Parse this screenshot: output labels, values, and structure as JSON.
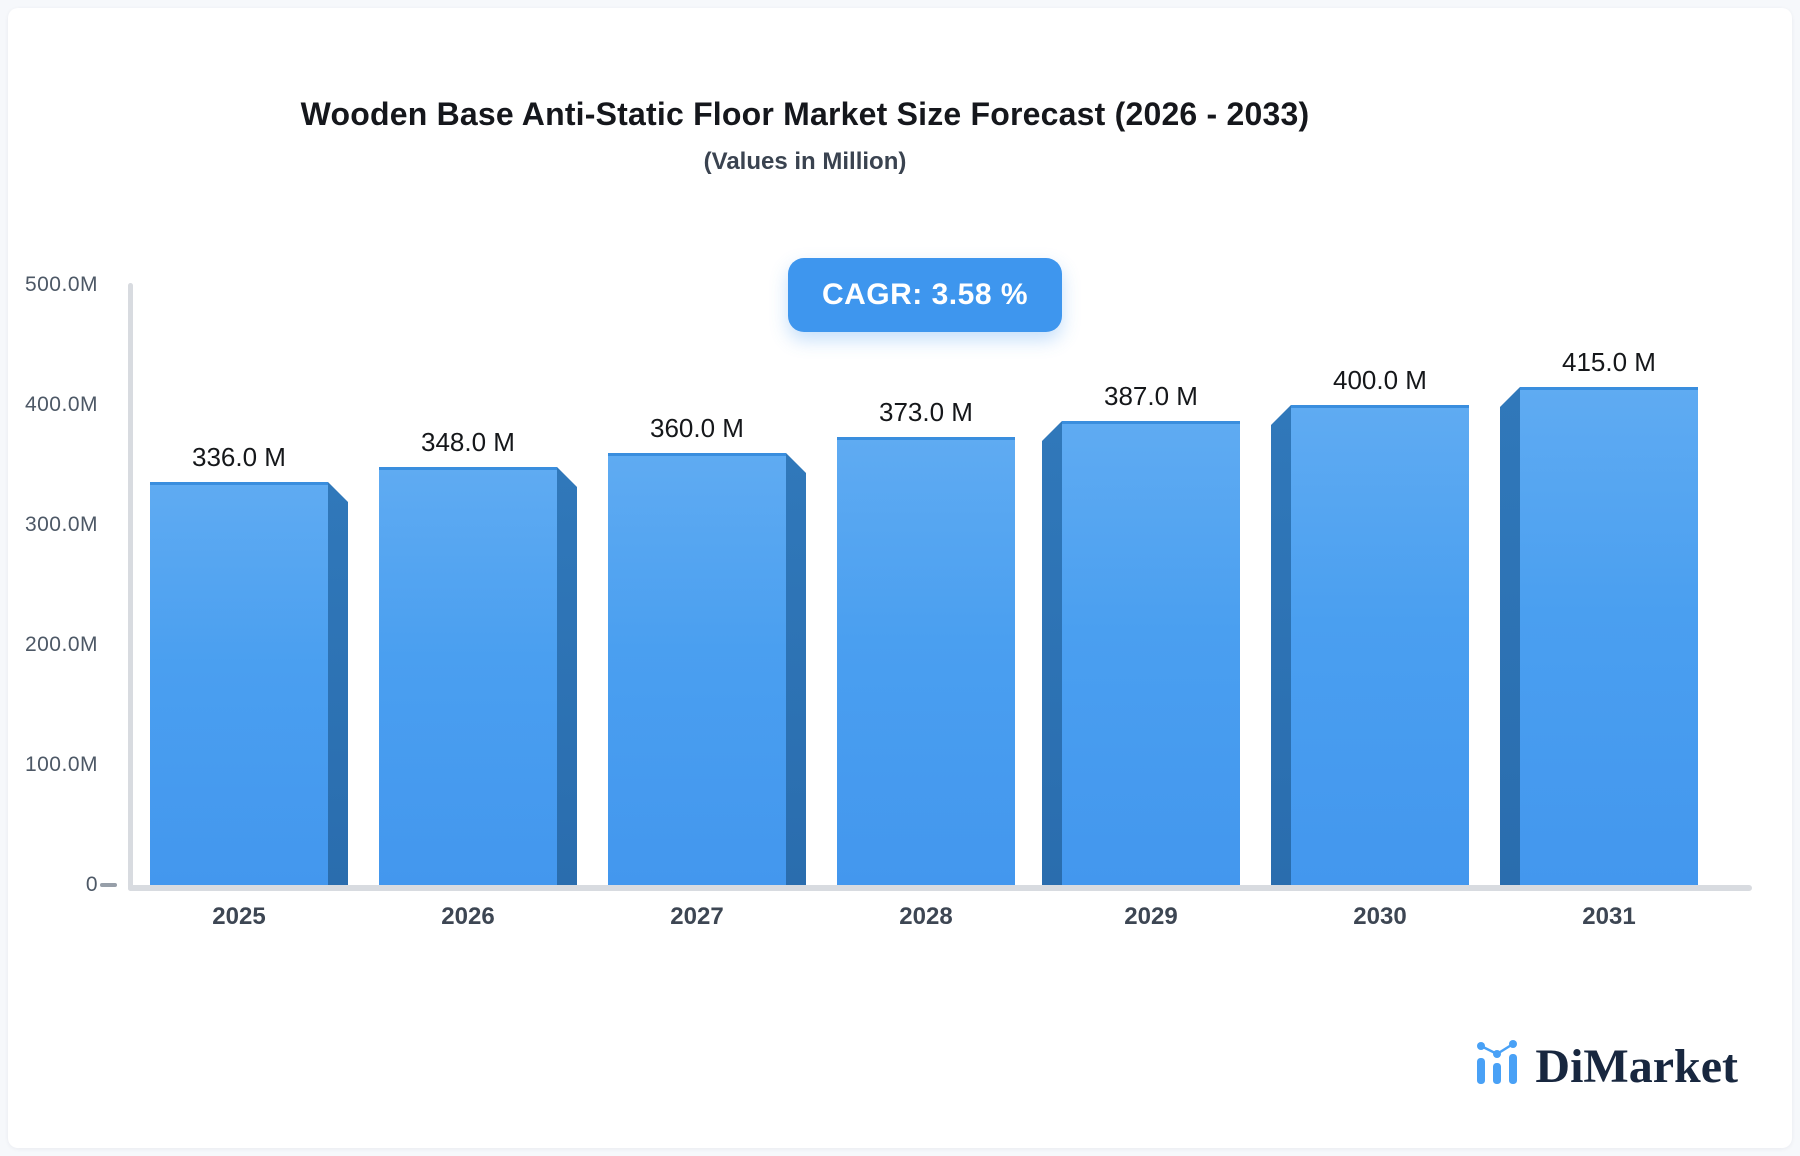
{
  "header": {
    "title": "Wooden Base Anti-Static Floor Market Size Forecast (2026 - 2033)",
    "subtitle": "(Values in Million)",
    "cagr_label": "CAGR: 3.58 %"
  },
  "chart_data": {
    "type": "bar",
    "title": "Wooden Base Anti-Static Floor Market Size Forecast (2026 - 2033)",
    "subtitle": "(Values in Million)",
    "unit": "Million",
    "cagr_percent": 3.58,
    "categories": [
      "2025",
      "2026",
      "2027",
      "2028",
      "2029",
      "2030",
      "2031"
    ],
    "values": [
      336.0,
      348.0,
      360.0,
      373.0,
      387.0,
      400.0,
      415.0
    ],
    "value_labels": [
      "336.0 M",
      "348.0 M",
      "360.0 M",
      "373.0 M",
      "387.0 M",
      "400.0 M",
      "415.0 M"
    ],
    "ylim": [
      0,
      500
    ],
    "y_ticks": [
      {
        "value": 500,
        "label": "500.0M"
      },
      {
        "value": 400,
        "label": "400.0M"
      },
      {
        "value": 300,
        "label": "300.0M"
      },
      {
        "value": 200,
        "label": "200.0M"
      },
      {
        "value": 100,
        "label": "100.0M"
      },
      {
        "value": 0,
        "label": "0"
      }
    ],
    "grid": false,
    "legend": false,
    "bar_style": "pseudo-3d",
    "colors": {
      "bar_top": "#5FABF2",
      "bar_bottom": "#4397EE",
      "bar_top_edge": "#3A8EDE",
      "bar_side": "#2D74B6",
      "axis": "#D8DBE0",
      "badge_bg": "#3E96EE"
    }
  },
  "footer": {
    "brand": "DiMarket",
    "logo_icon": "bar-chart-logo-icon"
  }
}
